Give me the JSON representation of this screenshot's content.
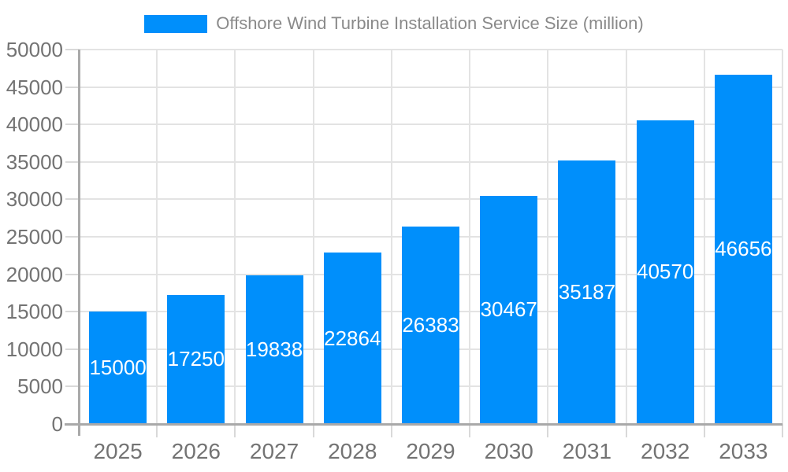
{
  "chart_data": {
    "type": "bar",
    "title": "Offshore Wind Turbine Installation Service Size (million)",
    "legend_label": "Offshore Wind Turbine Installation Service Size (million)",
    "legend_position": "top",
    "categories": [
      "2025",
      "2026",
      "2027",
      "2028",
      "2029",
      "2030",
      "2031",
      "2032",
      "2033"
    ],
    "values": [
      15000,
      17250,
      19838,
      22864,
      26383,
      30467,
      35187,
      40570,
      46656
    ],
    "data_labels": true,
    "xlabel": "",
    "ylabel": "",
    "ylim": [
      0,
      50000
    ],
    "ytick_step": 5000,
    "ytick_labels": [
      "0",
      "5000",
      "10000",
      "15000",
      "20000",
      "25000",
      "30000",
      "35000",
      "40000",
      "45000",
      "50000"
    ],
    "grid": "both",
    "colors": {
      "bar": "#008FFB",
      "grid": "#e3e3e3",
      "tick": "#d9d9d9",
      "axis": "#a9a9a9",
      "axis_label": "#737373",
      "legend_text": "#8a8a8a",
      "data_label": "#ffffff",
      "background": "#ffffff"
    }
  }
}
